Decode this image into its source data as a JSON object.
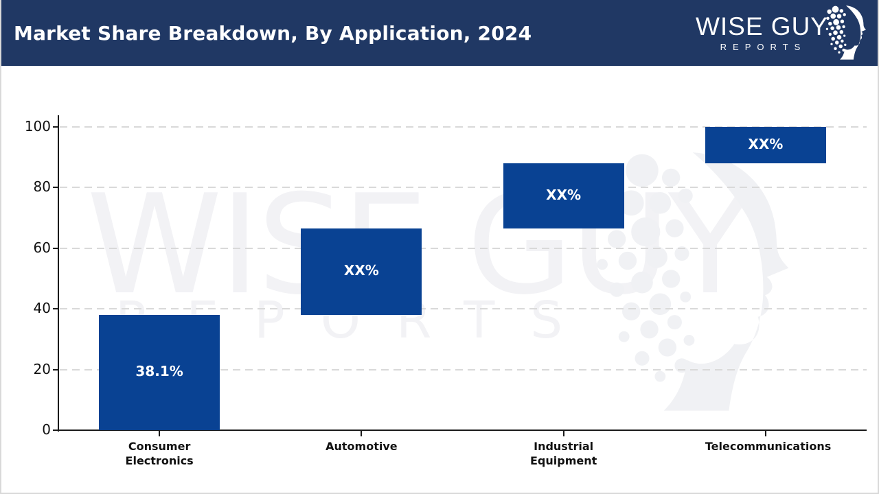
{
  "header": {
    "title": "Market Share Breakdown, By Application, 2024",
    "logo": {
      "line1": "WISE GUY",
      "line2": "REPORTS"
    }
  },
  "watermark": {
    "line1": "WISE GUY",
    "line2": "REPORTS"
  },
  "chart_data": {
    "type": "bar",
    "subtype": "waterfall",
    "title": "Market Share Breakdown, By Application, 2024",
    "categories": [
      "Consumer Electronics",
      "Automotive",
      "Industrial Equipment",
      "Telecommunications"
    ],
    "segments": [
      {
        "category": "Consumer Electronics",
        "start": 0,
        "end": 38.1,
        "label": "38.1%"
      },
      {
        "category": "Automotive",
        "start": 38.1,
        "end": 66.5,
        "label": "XX%"
      },
      {
        "category": "Industrial Equipment",
        "start": 66.5,
        "end": 88.0,
        "label": "XX%"
      },
      {
        "category": "Telecommunications",
        "start": 88.0,
        "end": 100,
        "label": "XX%"
      }
    ],
    "yticks": [
      0,
      20,
      40,
      60,
      80,
      100
    ],
    "ylim": [
      0,
      105
    ],
    "xlabel": "",
    "ylabel": "",
    "legend": "none",
    "grid": {
      "axis": "y",
      "style": "dashed"
    }
  },
  "colors": {
    "header_bg": "#203864",
    "bar": "#094293",
    "bar_label": "#ffffff",
    "axis": "#1a1a1a",
    "grid": "#d9d9d9",
    "tick_text": "#111111",
    "watermark": "#f2f2f5",
    "page_bg": "#ffffff",
    "border": "#d9d9d9"
  }
}
